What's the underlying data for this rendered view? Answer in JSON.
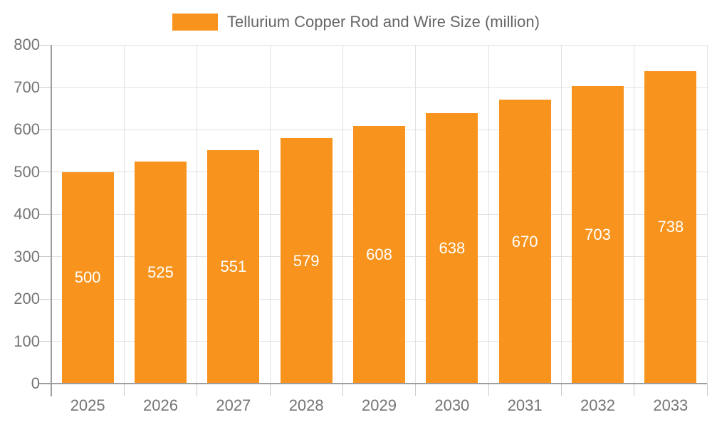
{
  "chart_data": {
    "type": "bar",
    "title": "Tellurium Copper Rod and Wire Size (million)",
    "categories": [
      "2025",
      "2026",
      "2027",
      "2028",
      "2029",
      "2030",
      "2031",
      "2032",
      "2033"
    ],
    "values": [
      500,
      525,
      551,
      579,
      608,
      638,
      670,
      703,
      738
    ],
    "xlabel": "",
    "ylabel": "",
    "ylim": [
      0,
      800
    ],
    "yticks": [
      0,
      100,
      200,
      300,
      400,
      500,
      600,
      700,
      800
    ],
    "grid": true,
    "legend_position": "top-center",
    "bar_value_labels": "inside-center"
  },
  "colors": {
    "bar": "#F8941E",
    "bar_label": "#FFFFFF",
    "axis_text": "#757575",
    "legend_text": "#666666",
    "grid_line": "#E1E1E1",
    "tick_line": "#C9C9C9",
    "axis_line": "#9E9E9E",
    "background": "#FFFFFF"
  }
}
